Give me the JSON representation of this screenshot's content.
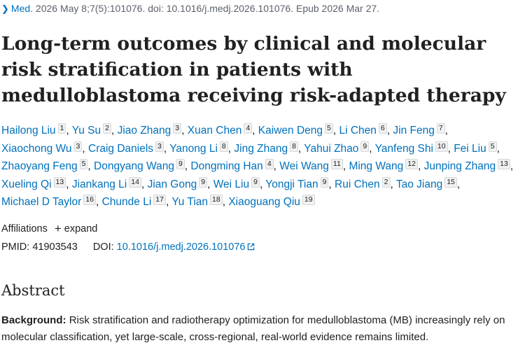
{
  "citation": {
    "journal": "Med.",
    "details": "2026 May 8;7(5):101076. doi: 10.1016/j.medj.2026.101076. Epub 2026 Mar 27."
  },
  "title": "Long-term outcomes by clinical and molecular risk stratification in patients with medulloblastoma receiving risk-adapted therapy",
  "authors": [
    {
      "name": "Hailong Liu",
      "aff": "1"
    },
    {
      "name": "Yu Su",
      "aff": "2"
    },
    {
      "name": "Jiao Zhang",
      "aff": "3"
    },
    {
      "name": "Xuan Chen",
      "aff": "4"
    },
    {
      "name": "Kaiwen Deng",
      "aff": "5"
    },
    {
      "name": "Li Chen",
      "aff": "6"
    },
    {
      "name": "Jin Feng",
      "aff": "7"
    },
    {
      "name": "Xiaochong Wu",
      "aff": "3"
    },
    {
      "name": "Craig Daniels",
      "aff": "3"
    },
    {
      "name": "Yanong Li",
      "aff": "8"
    },
    {
      "name": "Jing Zhang",
      "aff": "8"
    },
    {
      "name": "Yahui Zhao",
      "aff": "9"
    },
    {
      "name": "Yanfeng Shi",
      "aff": "10"
    },
    {
      "name": "Fei Liu",
      "aff": "5"
    },
    {
      "name": "Zhaoyang Feng",
      "aff": "5"
    },
    {
      "name": "Dongyang Wang",
      "aff": "9"
    },
    {
      "name": "Dongming Han",
      "aff": "4"
    },
    {
      "name": "Wei Wang",
      "aff": "11"
    },
    {
      "name": "Ming Wang",
      "aff": "12"
    },
    {
      "name": "Junping Zhang",
      "aff": "13"
    },
    {
      "name": "Xueling Qi",
      "aff": "13"
    },
    {
      "name": "Jiankang Li",
      "aff": "14"
    },
    {
      "name": "Jian Gong",
      "aff": "9"
    },
    {
      "name": "Wei Liu",
      "aff": "9"
    },
    {
      "name": "Yongji Tian",
      "aff": "9"
    },
    {
      "name": "Rui Chen",
      "aff": "2"
    },
    {
      "name": "Tao Jiang",
      "aff": "15"
    },
    {
      "name": "Michael D Taylor",
      "aff": "16"
    },
    {
      "name": "Chunde Li",
      "aff": "17"
    },
    {
      "name": "Yu Tian",
      "aff": "18"
    },
    {
      "name": "Xiaoguang Qiu",
      "aff": "19"
    }
  ],
  "affiliations": {
    "label": "Affiliations",
    "expand_label": "expand"
  },
  "ids": {
    "pmid_label": "PMID:",
    "pmid": "41903543",
    "doi_label": "DOI:",
    "doi": "10.1016/j.medj.2026.101076"
  },
  "abstract": {
    "heading": "Abstract",
    "background_label": "Background:",
    "background_text": "Risk stratification and radiotherapy optimization for medulloblastoma (MB) increasingly rely on molecular classification, yet large-scale, cross-regional, real-world evidence remains limited."
  },
  "colors": {
    "link": "#0071bc",
    "text": "#212121",
    "muted": "#5b616b"
  }
}
